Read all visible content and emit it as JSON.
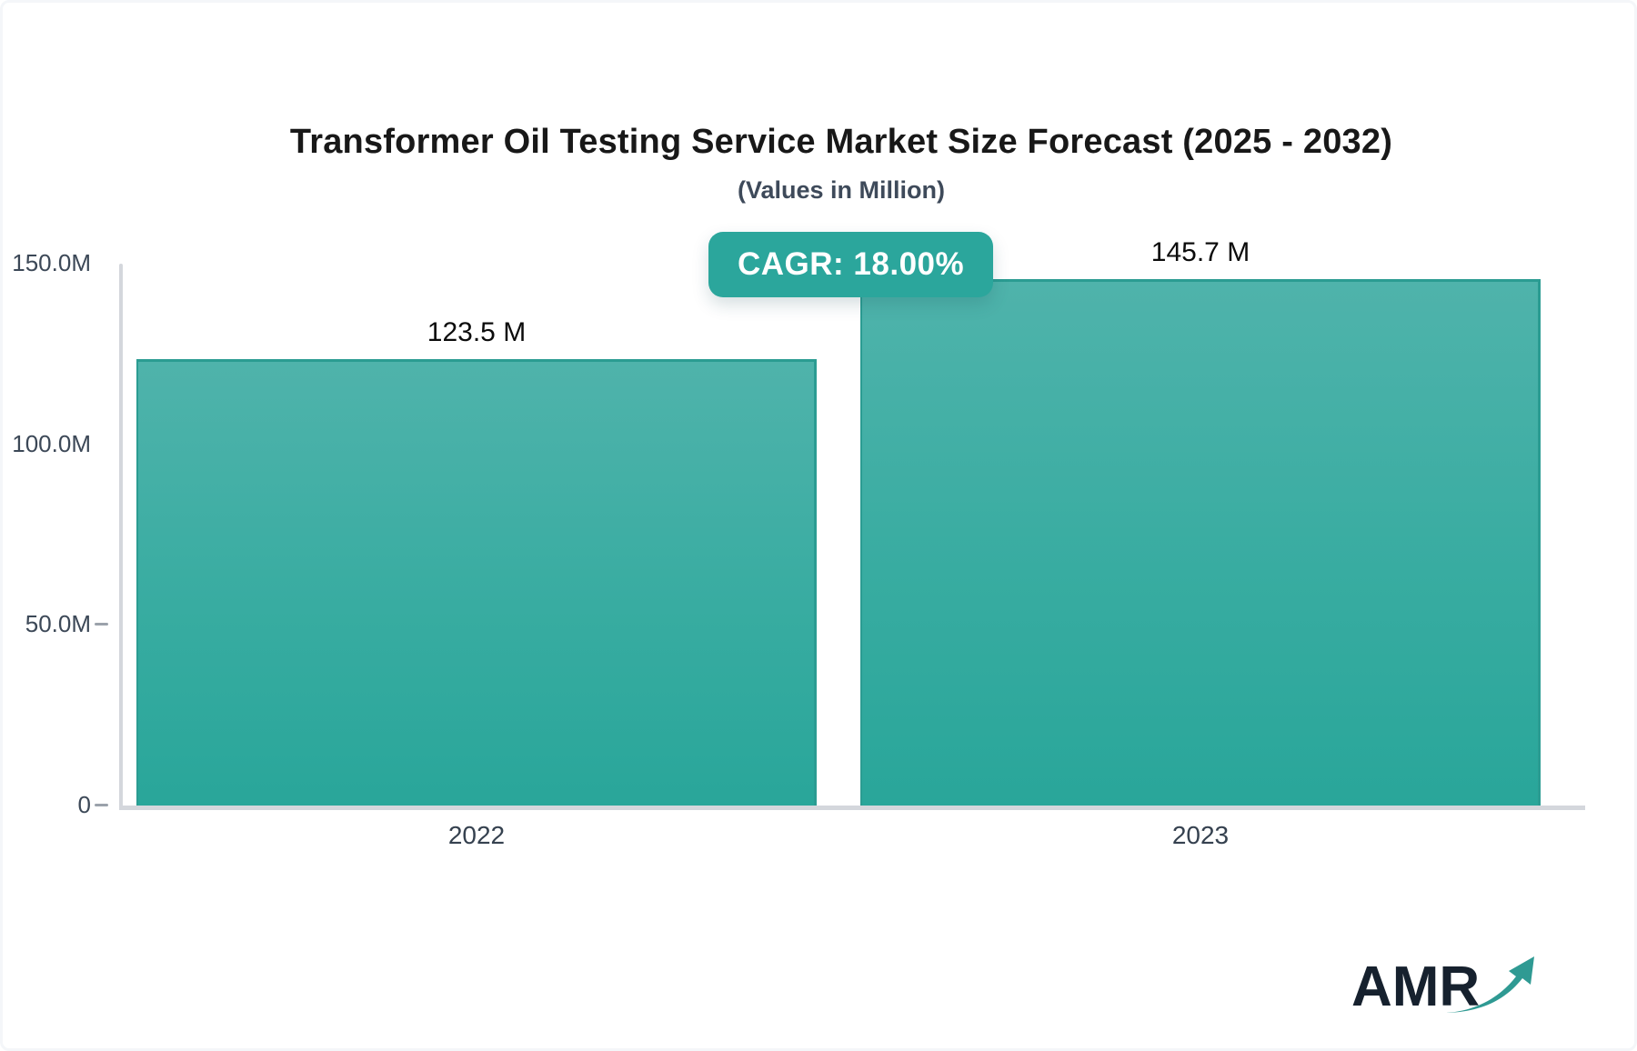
{
  "title": "Transformer Oil Testing Service Market Size Forecast (2025 - 2032)",
  "subtitle": "(Values in Million)",
  "cagr_badge": {
    "label": "CAGR: 18.00%"
  },
  "logo": {
    "text": "AMR"
  },
  "colors": {
    "bar_top": "#4fb3ab",
    "bar_bottom": "#29a69a",
    "bar_border": "#2b9c92",
    "badge_bg": "#2ba69c",
    "logo_navy": "#16212e",
    "logo_teal": "#2f9a93",
    "axis_line": "#d4d7dc",
    "tick_dash": "#9ba2ab",
    "label_slate": "#3c4857",
    "title_color": "#181818"
  },
  "chart_data": {
    "type": "bar",
    "title": "Transformer Oil Testing Service Market Size Forecast (2025 - 2032)",
    "subtitle": "(Values in Million)",
    "unit": "Million",
    "categories": [
      "2022",
      "2023"
    ],
    "values": [
      123.5,
      145.7
    ],
    "value_labels": [
      "123.5 M",
      "145.7 M"
    ],
    "cagr_percent": "18.00%",
    "ylim": [
      0,
      150
    ],
    "yticks": [
      {
        "label": "150.0M",
        "value": 150,
        "dash": false
      },
      {
        "label": "100.0M",
        "value": 100,
        "dash": false
      },
      {
        "label": "50.0M",
        "value": 50,
        "dash": true
      },
      {
        "label": "0",
        "value": 0,
        "dash": true
      }
    ],
    "grid": false,
    "legend": false
  }
}
